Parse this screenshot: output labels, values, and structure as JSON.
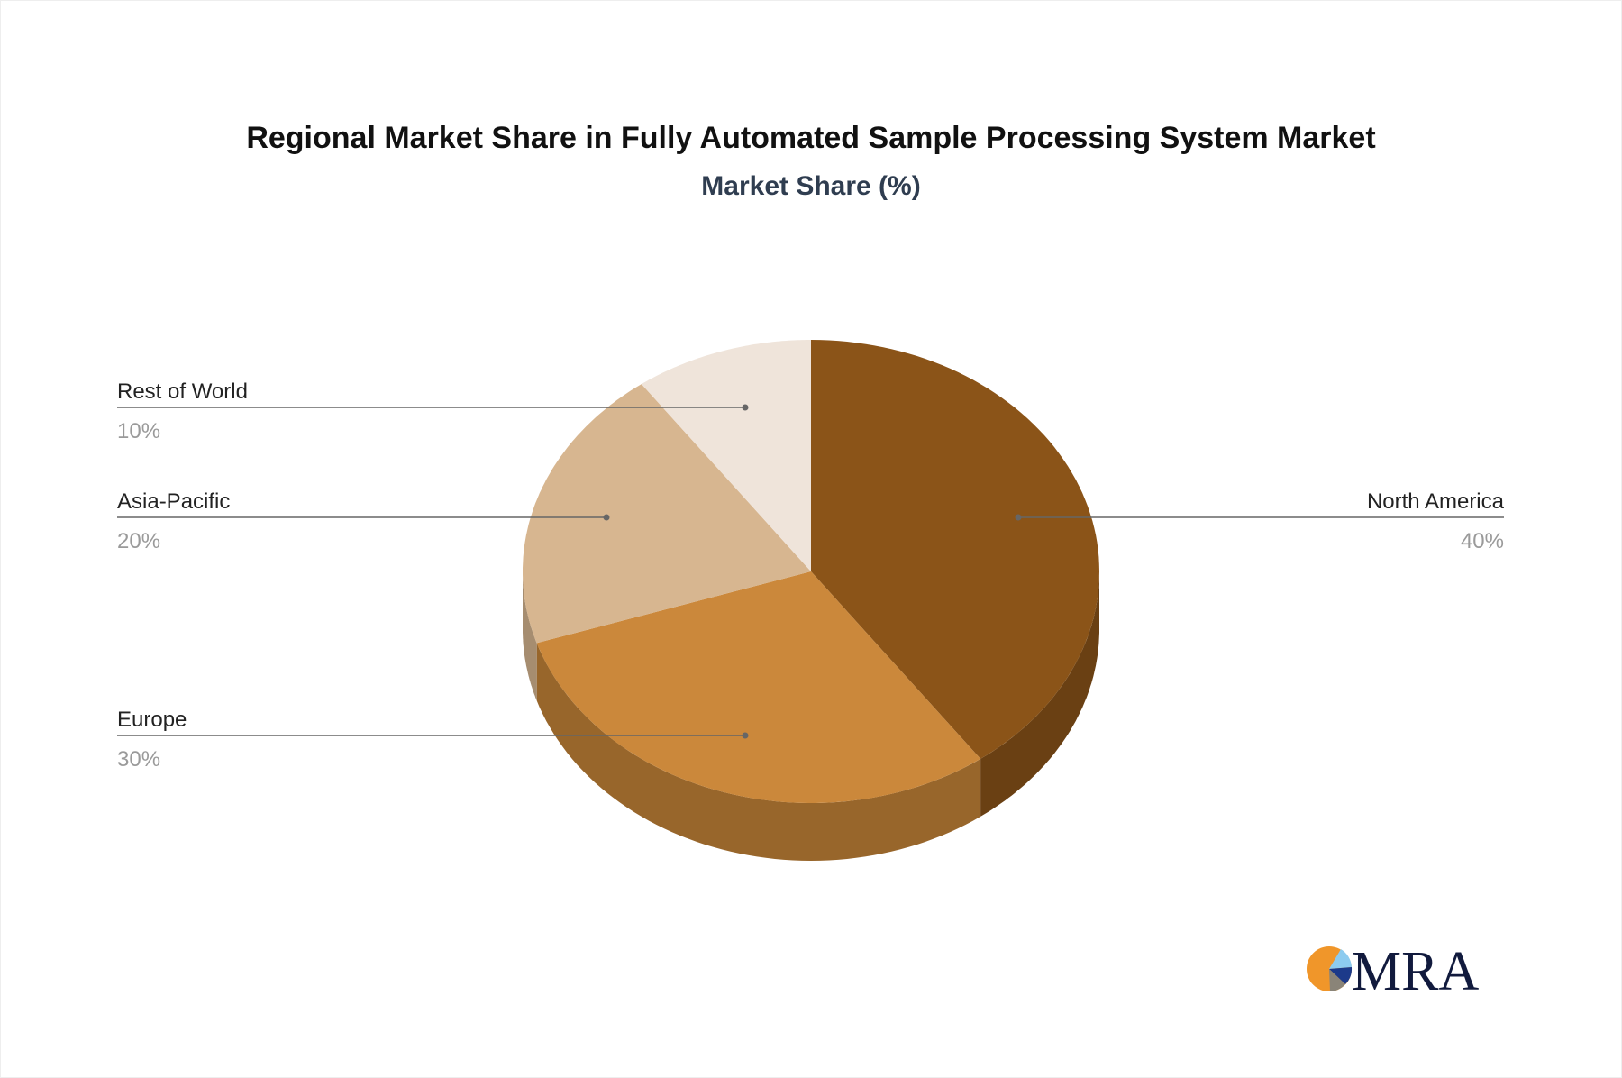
{
  "chart_data": {
    "type": "pie",
    "title": "Regional Market Share in Fully Automated Sample Processing System Market",
    "subtitle": "Market Share (%)",
    "style": "3d",
    "slices": [
      {
        "label": "North America",
        "value": 40,
        "value_label": "40%",
        "color": "#8B5418",
        "side_color": "#6A4013",
        "label_side": "right"
      },
      {
        "label": "Europe",
        "value": 30,
        "value_label": "30%",
        "color": "#CB883B",
        "side_color": "#98662B",
        "label_side": "left"
      },
      {
        "label": "Asia-Pacific",
        "value": 20,
        "value_label": "20%",
        "color": "#D7B690",
        "side_color": "#A68D70",
        "label_side": "left"
      },
      {
        "label": "Rest of World",
        "value": 10,
        "value_label": "10%",
        "color": "#EFE4DA",
        "side_color": "#BDB3AA",
        "label_side": "left"
      }
    ]
  },
  "logo": {
    "text": "MRA"
  }
}
